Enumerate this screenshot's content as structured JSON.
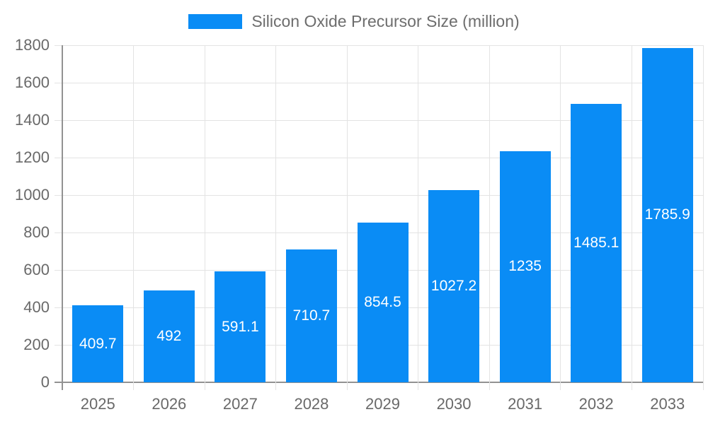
{
  "chart_data": {
    "type": "bar",
    "title": "Silicon Oxide Precursor Size (million)",
    "categories": [
      "2025",
      "2026",
      "2027",
      "2028",
      "2029",
      "2030",
      "2031",
      "2032",
      "2033"
    ],
    "series": [
      {
        "name": "Silicon Oxide Precursor Size (million)",
        "values": [
          409.7,
          492,
          591.1,
          710.7,
          854.5,
          1027.2,
          1235,
          1485.1,
          1785.9
        ],
        "value_labels": [
          "409.7",
          "492",
          "591.1",
          "710.7",
          "854.5",
          "1027.2",
          "1235",
          "1485.1",
          "1785.9"
        ]
      }
    ],
    "xlabel": "",
    "ylabel": "",
    "ylim": [
      0,
      1800
    ],
    "y_tick_step": 200,
    "y_ticks": [
      "0",
      "200",
      "400",
      "600",
      "800",
      "1000",
      "1200",
      "1400",
      "1600",
      "1800"
    ],
    "grid": "on",
    "legend_position": "top",
    "colors": {
      "bar": "#0a8cf5",
      "grid_light": "#e3e3e3",
      "grid_dark": "#929292",
      "axis_text": "#696969",
      "legend_text": "#6d6d6d",
      "value_label_text": "#ffffff",
      "background": "#ffffff"
    }
  }
}
